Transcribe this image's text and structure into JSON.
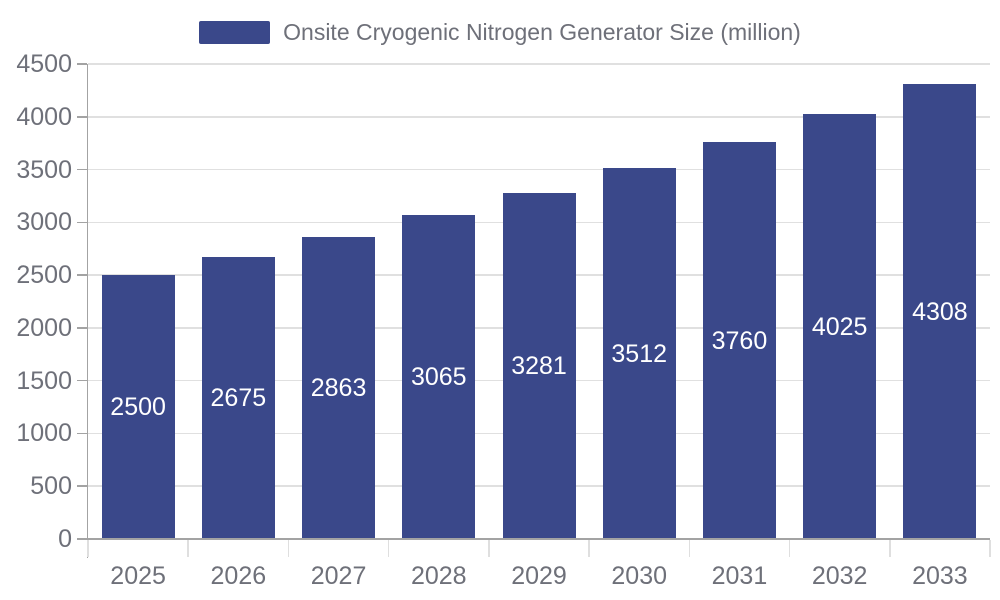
{
  "legend": {
    "label": "Onsite Cryogenic Nitrogen Generator Size (million)"
  },
  "colors": {
    "bar": "#3A488A",
    "grid": "#E0E0E0",
    "axis": "#A3A3A3",
    "boundary_tick": "#DFDFDF",
    "tick_label": "#6E7079",
    "bar_label": "#FFFFFF",
    "legend_text": "#6E7079",
    "background": "#FFFFFF"
  },
  "chart_data": {
    "type": "bar",
    "title": "Onsite Cryogenic Nitrogen Generator Size (million)",
    "categories": [
      "2025",
      "2026",
      "2027",
      "2028",
      "2029",
      "2030",
      "2031",
      "2032",
      "2033"
    ],
    "values": [
      2500,
      2675,
      2863,
      3065,
      3281,
      3512,
      3760,
      4025,
      4308
    ],
    "xlabel": "",
    "ylabel": "",
    "ylim": [
      0,
      4500
    ],
    "yticks": [
      0,
      500,
      1000,
      1500,
      2000,
      2500,
      3000,
      3500,
      4000,
      4500
    ],
    "grid": true,
    "legend_position": "top",
    "bar_labels": "inside-center"
  }
}
